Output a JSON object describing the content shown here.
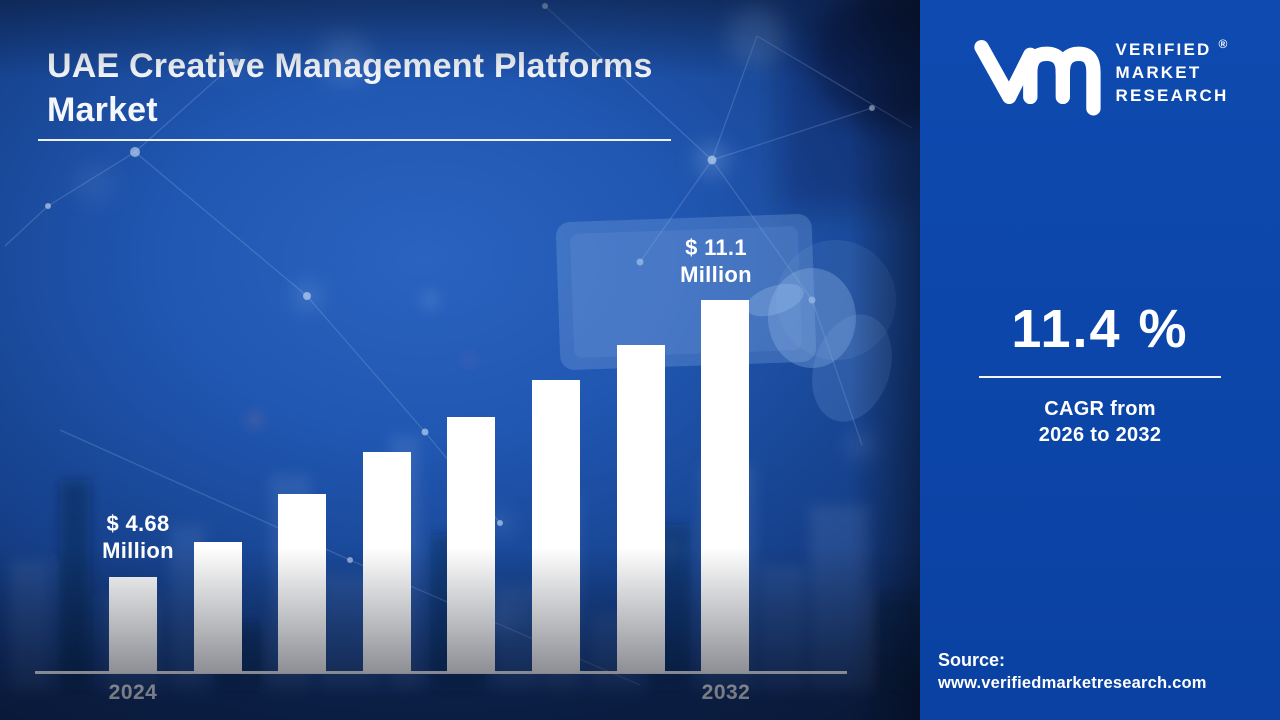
{
  "header": {
    "title_line1": "UAE Creative Management Platforms",
    "title_line2": "Market"
  },
  "brand": {
    "name_lines": [
      "VERIFIED",
      "MARKET",
      "RESEARCH"
    ],
    "registered_mark": "®"
  },
  "stat": {
    "value": "11.4 %",
    "caption_line1": "CAGR from",
    "caption_line2": "2026 to 2032"
  },
  "source": {
    "label": "Source:",
    "url": "www.verifiedmarketresearch.com"
  },
  "colors": {
    "panel_blue": "#0d47ad",
    "bar_white": "#ffffff",
    "scene_center_blue": "#2057b2",
    "scene_edge_navy": "#050f26",
    "text_white": "#f5f8fd"
  },
  "chart_data": {
    "type": "bar",
    "title": "UAE Creative Management Platforms Market",
    "unit": "USD Million",
    "categories": [
      "2024",
      "",
      "",
      "",
      "",
      "",
      "",
      "2032"
    ],
    "values": [
      4.68,
      null,
      null,
      null,
      null,
      null,
      null,
      11.1
    ],
    "height_fracs": [
      0.257,
      0.351,
      0.48,
      0.592,
      0.686,
      0.785,
      0.879,
      1.0
    ],
    "x_tick_labels": [
      "2024",
      "2032"
    ],
    "data_labels": {
      "first": {
        "line1": "$ 4.68",
        "line2": "Million"
      },
      "last": {
        "line1": "$ 11.1",
        "line2": "Million"
      }
    },
    "bar_color": "#ffffff",
    "axis": {
      "baseline_visible": true,
      "gridlines": false,
      "legend": "none"
    }
  }
}
